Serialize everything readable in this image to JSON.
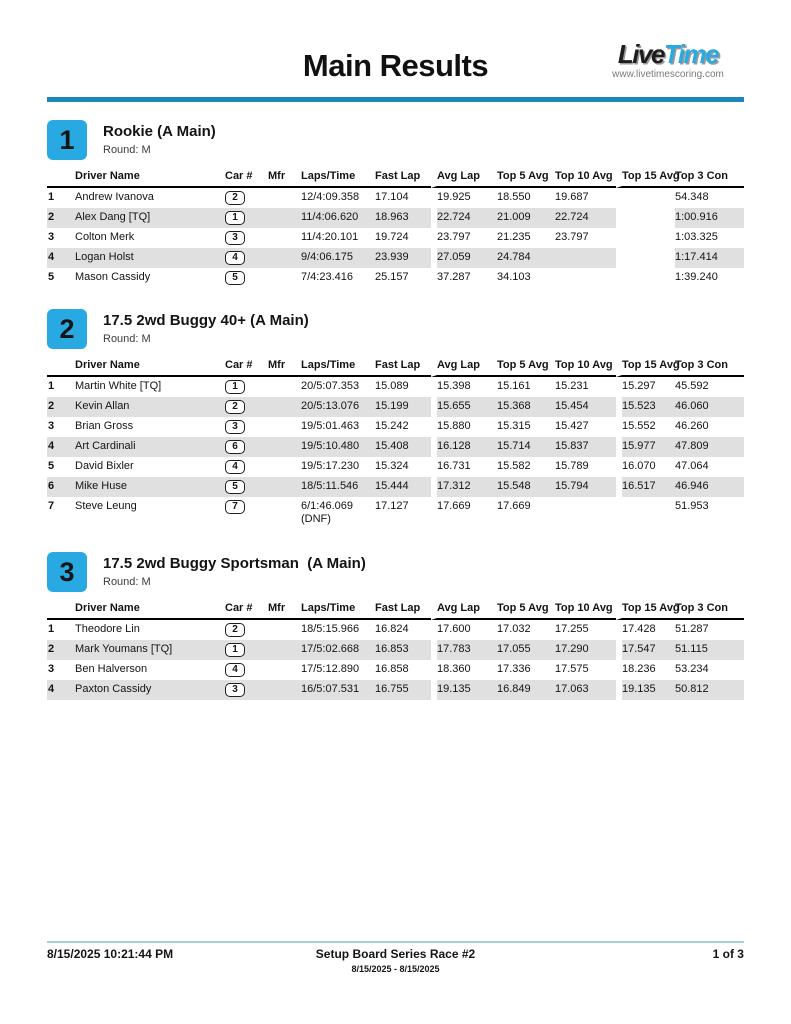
{
  "page_title": "Main Results",
  "logo": {
    "live": "Live",
    "time": "Time",
    "url": "www.livetimescoring.com"
  },
  "colors": {
    "accent": "#29abe2",
    "header_rule": "#1c87b8",
    "row_stripe": "#e0e0e0",
    "footer_rule": "#a7d0dc"
  },
  "columns": [
    "",
    "Driver Name",
    "Car #",
    "Mfr",
    "Laps/Time",
    "Fast Lap",
    "Avg Lap",
    "Top 5 Avg",
    "Top 10 Avg",
    "Top 15 Avg",
    "Top 3 Con"
  ],
  "sections": [
    {
      "number": "1",
      "title": "Rookie (A Main)",
      "round": "Round: M",
      "top15_shaded": false,
      "rows": [
        {
          "pos": "1",
          "driver": "Andrew Ivanova",
          "car": "2",
          "mfr": "",
          "laps_time": "12/4:09.358",
          "fast_lap": "17.104",
          "avg_lap": "19.925",
          "top5_avg": "18.550",
          "top10_avg": "19.687",
          "top15_avg": "",
          "top3_con": "54.348"
        },
        {
          "pos": "2",
          "driver": "Alex Dang [TQ]",
          "car": "1",
          "mfr": "",
          "laps_time": "11/4:06.620",
          "fast_lap": "18.963",
          "avg_lap": "22.724",
          "top5_avg": "21.009",
          "top10_avg": "22.724",
          "top15_avg": "",
          "top3_con": "1:00.916"
        },
        {
          "pos": "3",
          "driver": "Colton Merk",
          "car": "3",
          "mfr": "",
          "laps_time": "11/4:20.101",
          "fast_lap": "19.724",
          "avg_lap": "23.797",
          "top5_avg": "21.235",
          "top10_avg": "23.797",
          "top15_avg": "",
          "top3_con": "1:03.325"
        },
        {
          "pos": "4",
          "driver": "Logan Holst",
          "car": "4",
          "mfr": "",
          "laps_time": "9/4:06.175",
          "fast_lap": "23.939",
          "avg_lap": "27.059",
          "top5_avg": "24.784",
          "top10_avg": "",
          "top15_avg": "",
          "top3_con": "1:17.414"
        },
        {
          "pos": "5",
          "driver": "Mason Cassidy",
          "car": "5",
          "mfr": "",
          "laps_time": "7/4:23.416",
          "fast_lap": "25.157",
          "avg_lap": "37.287",
          "top5_avg": "34.103",
          "top10_avg": "",
          "top15_avg": "",
          "top3_con": "1:39.240"
        }
      ]
    },
    {
      "number": "2",
      "title": "17.5 2wd Buggy 40+ (A Main)",
      "round": "Round: M",
      "top15_shaded": true,
      "rows": [
        {
          "pos": "1",
          "driver": "Martin White [TQ]",
          "car": "1",
          "mfr": "",
          "laps_time": "20/5:07.353",
          "fast_lap": "15.089",
          "avg_lap": "15.398",
          "top5_avg": "15.161",
          "top10_avg": "15.231",
          "top15_avg": "15.297",
          "top3_con": "45.592"
        },
        {
          "pos": "2",
          "driver": "Kevin Allan",
          "car": "2",
          "mfr": "",
          "laps_time": "20/5:13.076",
          "fast_lap": "15.199",
          "avg_lap": "15.655",
          "top5_avg": "15.368",
          "top10_avg": "15.454",
          "top15_avg": "15.523",
          "top3_con": "46.060"
        },
        {
          "pos": "3",
          "driver": "Brian Gross",
          "car": "3",
          "mfr": "",
          "laps_time": "19/5:01.463",
          "fast_lap": "15.242",
          "avg_lap": "15.880",
          "top5_avg": "15.315",
          "top10_avg": "15.427",
          "top15_avg": "15.552",
          "top3_con": "46.260"
        },
        {
          "pos": "4",
          "driver": "Art Cardinali",
          "car": "6",
          "mfr": "",
          "laps_time": "19/5:10.480",
          "fast_lap": "15.408",
          "avg_lap": "16.128",
          "top5_avg": "15.714",
          "top10_avg": "15.837",
          "top15_avg": "15.977",
          "top3_con": "47.809"
        },
        {
          "pos": "5",
          "driver": "David Bixler",
          "car": "4",
          "mfr": "",
          "laps_time": "19/5:17.230",
          "fast_lap": "15.324",
          "avg_lap": "16.731",
          "top5_avg": "15.582",
          "top10_avg": "15.789",
          "top15_avg": "16.070",
          "top3_con": "47.064"
        },
        {
          "pos": "6",
          "driver": "Mike Huse",
          "car": "5",
          "mfr": "",
          "laps_time": "18/5:11.546",
          "fast_lap": "15.444",
          "avg_lap": "17.312",
          "top5_avg": "15.548",
          "top10_avg": "15.794",
          "top15_avg": "16.517",
          "top3_con": "46.946"
        },
        {
          "pos": "7",
          "driver": "Steve Leung",
          "car": "7",
          "mfr": "",
          "laps_time": "6/1:46.069",
          "laps_time_note": "(DNF)",
          "fast_lap": "17.127",
          "avg_lap": "17.669",
          "top5_avg": "17.669",
          "top10_avg": "",
          "top15_avg": "",
          "top3_con": "51.953"
        }
      ]
    },
    {
      "number": "3",
      "title": "17.5 2wd Buggy Sportsman  (A Main)",
      "round": "Round: M",
      "top15_shaded": true,
      "rows": [
        {
          "pos": "1",
          "driver": "Theodore Lin",
          "car": "2",
          "mfr": "",
          "laps_time": "18/5:15.966",
          "fast_lap": "16.824",
          "avg_lap": "17.600",
          "top5_avg": "17.032",
          "top10_avg": "17.255",
          "top15_avg": "17.428",
          "top3_con": "51.287"
        },
        {
          "pos": "2",
          "driver": "Mark Youmans [TQ]",
          "car": "1",
          "mfr": "",
          "laps_time": "17/5:02.668",
          "fast_lap": "16.853",
          "avg_lap": "17.783",
          "top5_avg": "17.055",
          "top10_avg": "17.290",
          "top15_avg": "17.547",
          "top3_con": "51.115"
        },
        {
          "pos": "3",
          "driver": "Ben Halverson",
          "car": "4",
          "mfr": "",
          "laps_time": "17/5:12.890",
          "fast_lap": "16.858",
          "avg_lap": "18.360",
          "top5_avg": "17.336",
          "top10_avg": "17.575",
          "top15_avg": "18.236",
          "top3_con": "53.234"
        },
        {
          "pos": "4",
          "driver": "Paxton Cassidy",
          "car": "3",
          "mfr": "",
          "laps_time": "16/5:07.531",
          "fast_lap": "16.755",
          "avg_lap": "19.135",
          "top5_avg": "16.849",
          "top10_avg": "17.063",
          "top15_avg": "19.135",
          "top3_con": "50.812"
        }
      ]
    }
  ],
  "footer": {
    "timestamp": "8/15/2025 10:21:44 PM",
    "series": "Setup Board Series Race #2",
    "dates": "8/15/2025 - 8/15/2025",
    "page_number": "1 of 3"
  }
}
